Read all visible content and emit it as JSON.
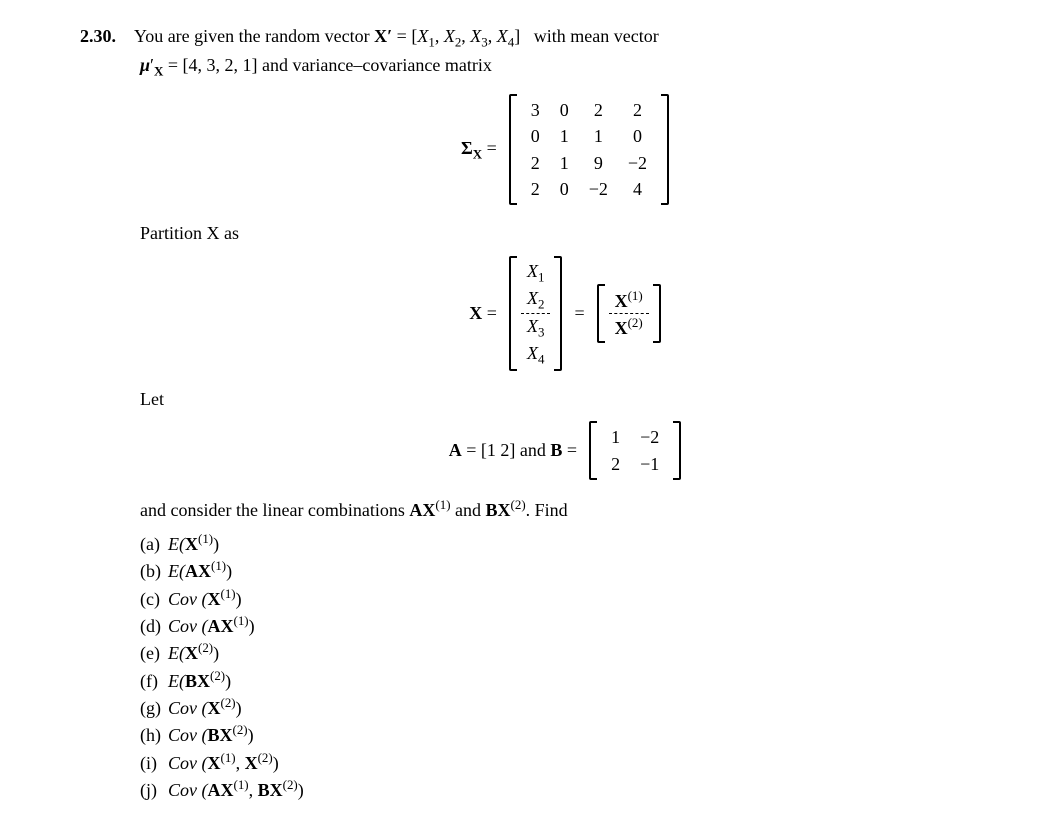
{
  "problem": {
    "number": "2.30.",
    "line1_prefix": "You are given the random vector ",
    "Xprime": "X′",
    "eq": " = ",
    "Xvec": "[X",
    "comma": ", ",
    "close_bracket": "]",
    "line1_suffix": " with mean vector",
    "line2_mu": "μ",
    "line2_prime": "′",
    "line2_sub": "X",
    "line2_eq": " = [4, 3, 2, 1] and variance–covariance matrix",
    "sigma_label": "Σ",
    "sigma_sub": "X",
    "sigma_eq": " =",
    "sigma_matrix": [
      [
        "3",
        "0",
        "2",
        "2"
      ],
      [
        "0",
        "1",
        "1",
        "0"
      ],
      [
        "2",
        "1",
        "9",
        "−2"
      ],
      [
        "2",
        "0",
        "−2",
        "4"
      ]
    ],
    "partition_label": "Partition X as",
    "X_label": "X",
    "equals": " = ",
    "X_components": [
      "X",
      "X",
      "X",
      "X"
    ],
    "X_sub": [
      "1",
      "2",
      "3",
      "4"
    ],
    "Xpart_top": "X",
    "Xpart_top_sup": "(1)",
    "Xpart_bot": "X",
    "Xpart_bot_sup": "(2)",
    "let_label": "Let",
    "A_label": "A",
    "A_eq": " = [1   2]   and   ",
    "B_label": "B",
    "B_eq": " = ",
    "B_matrix": [
      [
        "1",
        "−2"
      ],
      [
        "2",
        "−1"
      ]
    ],
    "consider_text_1": "and consider the linear combinations ",
    "consider_AX": "AX",
    "consider_sup1": "(1)",
    "consider_and": " and ",
    "consider_BX": "BX",
    "consider_sup2": "(2)",
    "consider_text_2": ". Find",
    "items": [
      {
        "label": "(a)",
        "expr_prefix": "E(",
        "sym": "X",
        "sup": "(1)",
        "expr_suffix": ")"
      },
      {
        "label": "(b)",
        "expr_prefix": "E(",
        "sym": "AX",
        "sup": "(1)",
        "expr_suffix": ")"
      },
      {
        "label": "(c)",
        "expr_prefix": "Cov (",
        "sym": "X",
        "sup": "(1)",
        "expr_suffix": ")"
      },
      {
        "label": "(d)",
        "expr_prefix": "Cov (",
        "sym": "AX",
        "sup": "(1)",
        "expr_suffix": ")"
      },
      {
        "label": "(e)",
        "expr_prefix": "E(",
        "sym": "X",
        "sup": "(2)",
        "expr_suffix": ")"
      },
      {
        "label": "(f)",
        "expr_prefix": "E(",
        "sym": "BX",
        "sup": "(2)",
        "expr_suffix": ")"
      },
      {
        "label": "(g)",
        "expr_prefix": "Cov (",
        "sym": "X",
        "sup": "(2)",
        "expr_suffix": ")"
      },
      {
        "label": "(h)",
        "expr_prefix": "Cov (",
        "sym": "BX",
        "sup": "(2)",
        "expr_suffix": ")"
      },
      {
        "label": "(i)",
        "expr_prefix": "Cov (",
        "sym": "X",
        "sup": "(1)",
        "mid": ", ",
        "sym2": "X",
        "sup2": "(2)",
        "expr_suffix": ")"
      },
      {
        "label": "(j)",
        "expr_prefix": "Cov (",
        "sym": "AX",
        "sup": "(1)",
        "mid": ", ",
        "sym2": "BX",
        "sup2": "(2)",
        "expr_suffix": ")"
      }
    ]
  }
}
